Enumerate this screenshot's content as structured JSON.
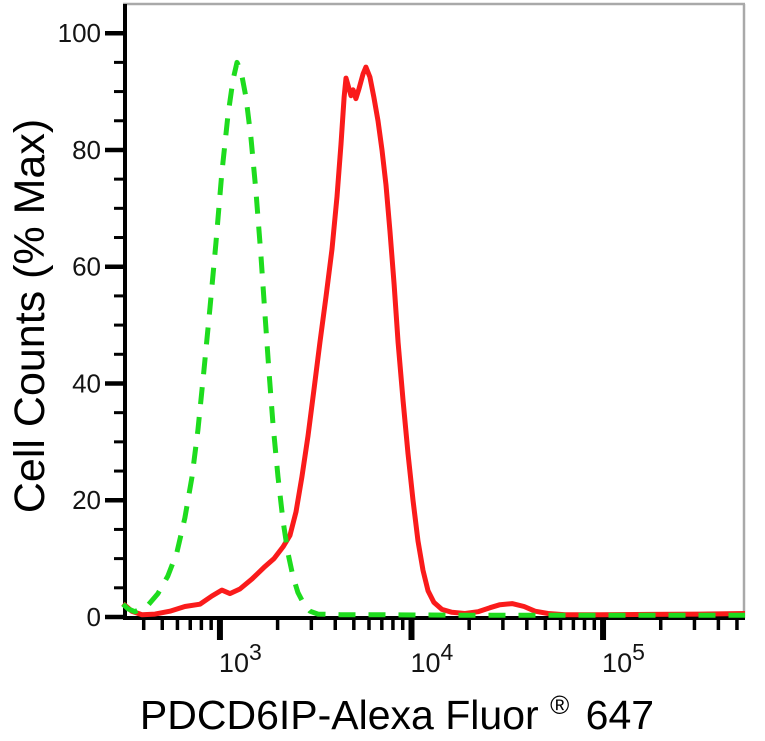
{
  "chart_data": {
    "type": "line",
    "subtype": "flow-cytometry-histogram-overlay",
    "title": "",
    "xlabel": {
      "text": "PDCD6IP-Alexa Fluor",
      "superscript": "®",
      "suffix": "647"
    },
    "ylabel": "Cell Counts (% Max)",
    "x_axis": {
      "scale": "log10",
      "range_log10": [
        2.494,
        5.741
      ],
      "major_tick_exponents": [
        3,
        4,
        5
      ],
      "tick_label_base": "10"
    },
    "y_axis": {
      "range": [
        0,
        105
      ],
      "major_ticks": [
        0,
        20,
        40,
        60,
        80,
        100
      ],
      "minor_tick_step": 5
    },
    "grid": false,
    "legend": false,
    "series": [
      {
        "name": "red-solid-curve",
        "color": "#fa1b1b",
        "line_style": "solid",
        "points_log10x_pct": [
          [
            2.494,
            2.3
          ],
          [
            2.54,
            1.0
          ],
          [
            2.593,
            0.4
          ],
          [
            2.661,
            0.5
          ],
          [
            2.739,
            1.0
          ],
          [
            2.817,
            1.8
          ],
          [
            2.896,
            2.2
          ],
          [
            2.958,
            3.6
          ],
          [
            3.01,
            4.6
          ],
          [
            3.052,
            4.0
          ],
          [
            3.104,
            4.8
          ],
          [
            3.167,
            6.5
          ],
          [
            3.23,
            8.5
          ],
          [
            3.282,
            10
          ],
          [
            3.329,
            12
          ],
          [
            3.366,
            14
          ],
          [
            3.397,
            18
          ],
          [
            3.428,
            24
          ],
          [
            3.46,
            31
          ],
          [
            3.491,
            39
          ],
          [
            3.522,
            47
          ],
          [
            3.554,
            55
          ],
          [
            3.585,
            63
          ],
          [
            3.611,
            72
          ],
          [
            3.632,
            81
          ],
          [
            3.648,
            89
          ],
          [
            3.658,
            92.3
          ],
          [
            3.674,
            90.5
          ],
          [
            3.684,
            89.3
          ],
          [
            3.695,
            90.3
          ],
          [
            3.71,
            88.8
          ],
          [
            3.726,
            90.5
          ],
          [
            3.747,
            93
          ],
          [
            3.762,
            94.2
          ],
          [
            3.783,
            92.5
          ],
          [
            3.804,
            89
          ],
          [
            3.825,
            85
          ],
          [
            3.846,
            80
          ],
          [
            3.867,
            74
          ],
          [
            3.888,
            66
          ],
          [
            3.909,
            57
          ],
          [
            3.93,
            47
          ],
          [
            3.956,
            37
          ],
          [
            3.982,
            28
          ],
          [
            4.008,
            20
          ],
          [
            4.034,
            13
          ],
          [
            4.06,
            8
          ],
          [
            4.086,
            4.5
          ],
          [
            4.117,
            2.5
          ],
          [
            4.159,
            1.3
          ],
          [
            4.211,
            0.8
          ],
          [
            4.279,
            0.6
          ],
          [
            4.347,
            0.9
          ],
          [
            4.41,
            1.6
          ],
          [
            4.462,
            2.1
          ],
          [
            4.525,
            2.3
          ],
          [
            4.588,
            1.8
          ],
          [
            4.645,
            1.0
          ],
          [
            4.713,
            0.6
          ],
          [
            4.802,
            0.4
          ],
          [
            4.984,
            0.4
          ],
          [
            5.245,
            0.45
          ],
          [
            5.506,
            0.5
          ],
          [
            5.741,
            0.6
          ]
        ]
      },
      {
        "name": "green-dashed-curve",
        "color": "#1edc1e",
        "line_style": "dashed",
        "points_log10x_pct": [
          [
            2.494,
            2.2
          ],
          [
            2.52,
            1.4
          ],
          [
            2.556,
            0.9
          ],
          [
            2.624,
            2.0
          ],
          [
            2.676,
            4.0
          ],
          [
            2.728,
            7.0
          ],
          [
            2.775,
            11
          ],
          [
            2.817,
            17
          ],
          [
            2.854,
            24
          ],
          [
            2.885,
            32
          ],
          [
            2.916,
            42
          ],
          [
            2.948,
            53
          ],
          [
            2.979,
            64
          ],
          [
            3.01,
            76
          ],
          [
            3.042,
            86
          ],
          [
            3.068,
            92
          ],
          [
            3.089,
            95
          ],
          [
            3.11,
            93.5
          ],
          [
            3.136,
            89
          ],
          [
            3.162,
            82
          ],
          [
            3.188,
            73
          ],
          [
            3.214,
            62
          ],
          [
            3.235,
            52
          ],
          [
            3.256,
            42
          ],
          [
            3.277,
            33
          ],
          [
            3.303,
            24
          ],
          [
            3.329,
            16.5
          ],
          [
            3.355,
            11
          ],
          [
            3.381,
            7
          ],
          [
            3.407,
            4.2
          ],
          [
            3.439,
            2.2
          ],
          [
            3.47,
            1.0
          ],
          [
            3.512,
            0.5
          ],
          [
            3.627,
            0.4
          ],
          [
            3.836,
            0.4
          ],
          [
            4.201,
            0.3
          ],
          [
            4.723,
            0.3
          ],
          [
            5.245,
            0.3
          ],
          [
            5.741,
            0.3
          ]
        ]
      }
    ]
  },
  "frame": {
    "axis_color": "#000000",
    "border_color": "#a9a9a9",
    "text_color": "#141414"
  }
}
